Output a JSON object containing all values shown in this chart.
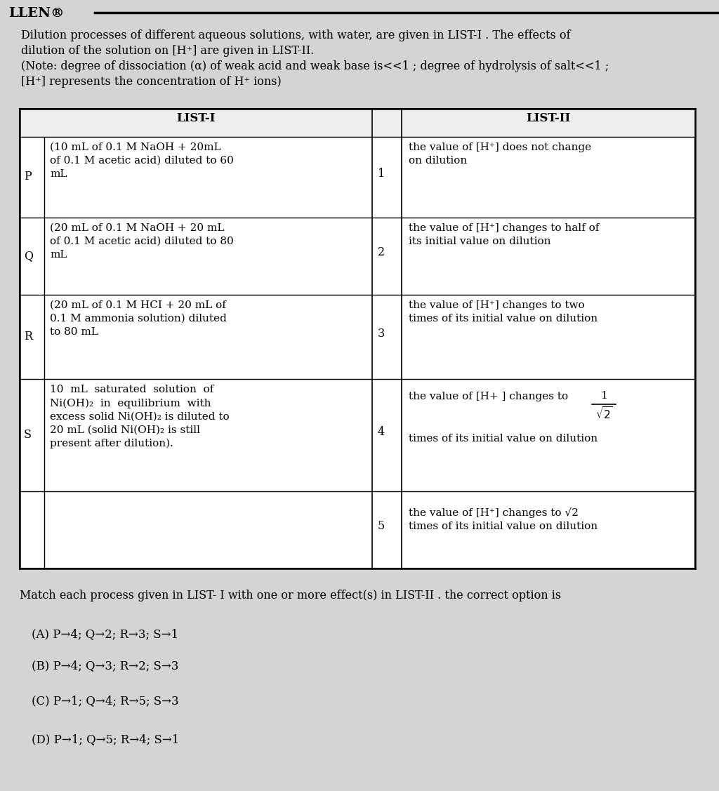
{
  "bg_color": "#d4d4d4",
  "table_bg": "#ffffff",
  "title_line": "LLEN®",
  "intro_lines": [
    "Dilution processes of different aqueous solutions, with water, are given in LIST-I . The effects of",
    "dilution of the solution on [H⁺] are given in LIST-II.",
    "(Note: degree of dissociation (α) of weak acid and weak base is<<1 ; degree of hydrolysis of salt<<1 ;",
    "[H⁺] represents the concentration of H⁺ ions)"
  ],
  "list1_header": "LIST-I",
  "list2_header": "LIST-II",
  "row_P_list1": "(10 mL of 0.1 M NaOH + 20mL\nof 0.1 M acetic acid) diluted to 60\nmL",
  "row_P_num": "1",
  "row_P_list2": "the value of [H⁺] does not change\non dilution",
  "row_Q_list1": "(20 mL of 0.1 M NaOH + 20 mL\nof 0.1 M acetic acid) diluted to 80\nmL",
  "row_Q_num": "2",
  "row_Q_list2": "the value of [H⁺] changes to half of\nits initial value on dilution",
  "row_R_list1": "(20 mL of 0.1 M HCI + 20 mL of\n0.1 M ammonia solution) diluted\nto 80 mL",
  "row_R_num": "3",
  "row_R_list2": "the value of [H⁺] changes to two\ntimes of its initial value on dilution",
  "row_S_list1": "10  mL  saturated  solution  of\nNi(OH)₂  in  equilibrium  with\nexcess solid Ni(OH)₂ is diluted to\n20 mL (solid Ni(OH)₂ is still\npresent after dilution).",
  "row_S_num": "4",
  "row_S_list2_part1": "the value of [H+ ] changes to",
  "row_S_list2_part2": "times of its initial value on dilution",
  "row_5_num": "5",
  "row_5_list2": "the value of [H⁺] changes to √2\ntimes of its initial value on dilution",
  "footer_text": "Match each process given in LIST- I with one or more effect(s) in LIST-II . the correct option is",
  "options": [
    "(A) P→4; Q→2; R→3; S→1",
    "(B) P→4; Q→3; R→2; S→3",
    "(C) P→1; Q→4; R→5; S→3",
    "(D) P→1; Q→5; R→4; S→1"
  ]
}
